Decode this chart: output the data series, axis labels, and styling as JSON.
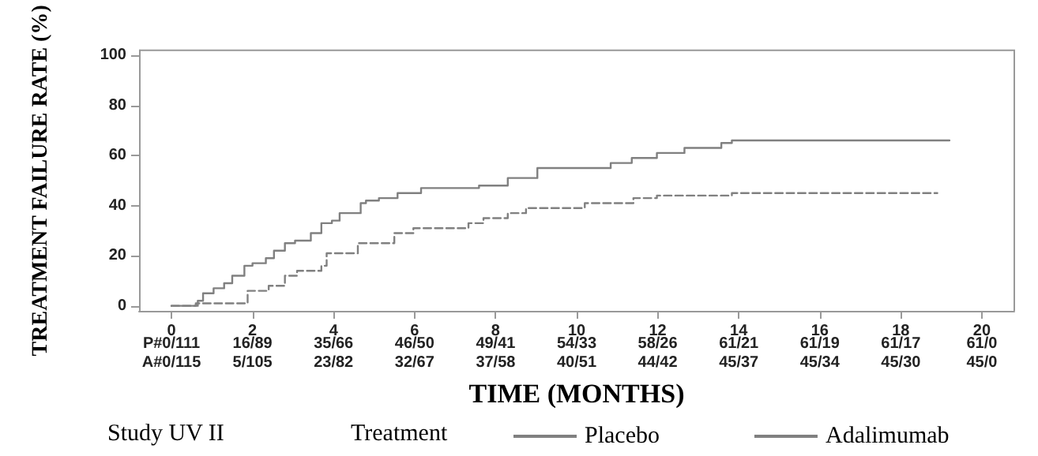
{
  "chart_data": {
    "type": "step",
    "xlabel": "TIME (MONTHS)",
    "ylabel": "TREATMENT FAILURE RATE (%)",
    "legend_title": "Treatment",
    "legend": "bottom",
    "grid": false,
    "marker": "none",
    "xlim": [
      -0.8,
      20.8
    ],
    "xticks": [
      0,
      2,
      4,
      6,
      8,
      10,
      12,
      14,
      16,
      18,
      20
    ],
    "ylim": [
      -2,
      102
    ],
    "yticks": [
      0,
      20,
      40,
      60,
      80,
      100
    ],
    "annotations": [
      "P#0/111",
      "16/89",
      "35/66",
      "46/50",
      "49/41",
      "54/33",
      "58/26",
      "61/21",
      "61/19",
      "61/17",
      "61/0",
      "A#0/115",
      "5/105",
      "23/82",
      "32/67",
      "37/58",
      "40/51",
      "44/42",
      "45/37",
      "45/34",
      "45/30",
      "45/0",
      "Study UV II"
    ],
    "series": [
      {
        "name": "Placebo",
        "color": "#808080",
        "line_style": "solid",
        "x": [
          0,
          0.65,
          0.78,
          1.04,
          1.3,
          1.5,
          1.8,
          2.0,
          2.33,
          2.53,
          2.8,
          3.05,
          3.44,
          3.7,
          3.96,
          4.15,
          4.67,
          4.8,
          5.12,
          5.58,
          6.16,
          7.59,
          8.3,
          9.03,
          10.84,
          11.36,
          11.98,
          12.66,
          13.57,
          13.83,
          19.2
        ],
        "values": [
          0,
          2,
          5,
          7,
          9,
          12,
          16,
          17,
          19,
          22,
          25,
          26,
          29,
          33,
          34,
          37,
          41,
          42,
          43,
          45,
          47,
          48,
          51,
          55,
          57,
          59,
          61,
          63,
          65,
          66,
          66
        ]
      },
      {
        "name": "Adalimumab",
        "color": "#808080",
        "line_style": "dashed",
        "x": [
          0,
          0.6,
          1.88,
          2.4,
          2.8,
          3.1,
          3.7,
          3.83,
          4.6,
          5.5,
          5.97,
          7.33,
          7.7,
          8.3,
          8.75,
          10.2,
          11.4,
          11.98,
          13.83,
          18.9
        ],
        "values": [
          0,
          1,
          6,
          8,
          12,
          14,
          16,
          21,
          25,
          29,
          31,
          33,
          35,
          37,
          39,
          41,
          43,
          44,
          45,
          45
        ]
      }
    ]
  }
}
